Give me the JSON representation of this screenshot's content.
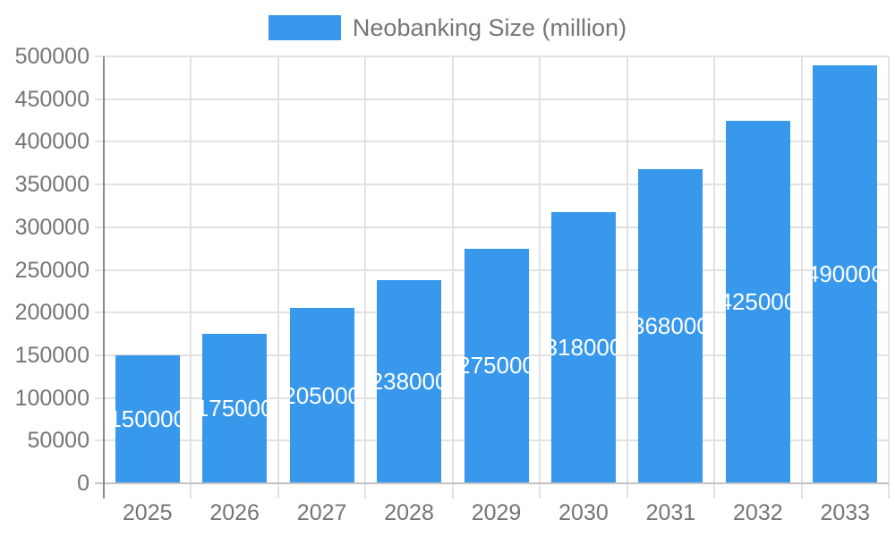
{
  "chart_data": {
    "type": "bar",
    "title": "",
    "legend": "Neobanking Size (million)",
    "legend_position": "top",
    "categories": [
      "2025",
      "2026",
      "2027",
      "2028",
      "2029",
      "2030",
      "2031",
      "2032",
      "2033"
    ],
    "series": [
      {
        "name": "Neobanking Size (million)",
        "values": [
          150000,
          175000,
          205000,
          238000,
          275000,
          318000,
          368000,
          425000,
          490000
        ]
      }
    ],
    "value_labels": [
      "150000",
      "175000",
      "205000",
      "238000",
      "275000",
      "318000",
      "368000",
      "425000",
      "490000"
    ],
    "xlabel": "",
    "ylabel": "",
    "ylim": [
      0,
      500000
    ],
    "ytick_step": 50000,
    "y_ticks": [
      "0",
      "50000",
      "100000",
      "150000",
      "200000",
      "250000",
      "300000",
      "350000",
      "400000",
      "450000",
      "500000"
    ],
    "grid": true,
    "colors": {
      "bar": "#3898EB",
      "value_label": "#ffffff",
      "axis_text": "#757575",
      "gridline": "#e2e2e2",
      "zero_line": "#c2c2c2",
      "y_axis_line": "#8a8a8a"
    }
  }
}
